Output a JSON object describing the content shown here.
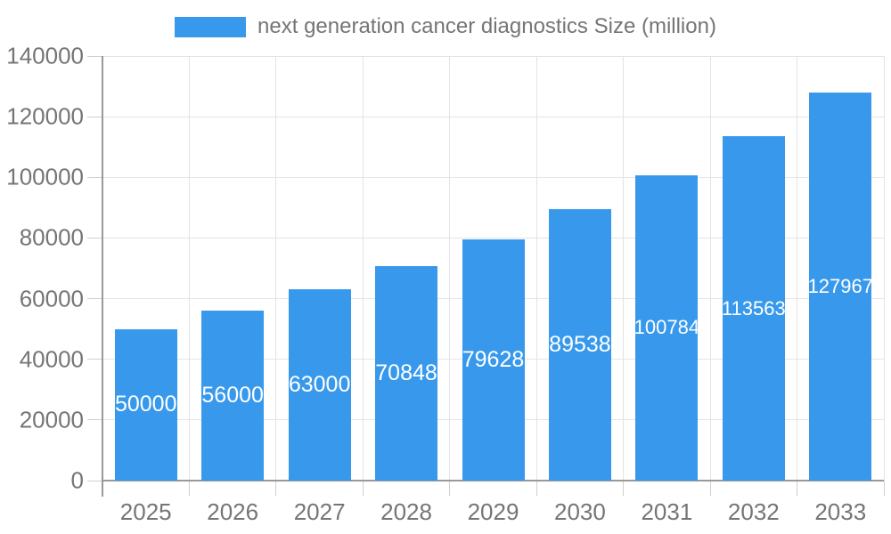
{
  "chart_data": {
    "type": "bar",
    "title": "",
    "legend": {
      "label": "next generation cancer diagnostics Size (million)",
      "position": "top"
    },
    "categories": [
      "2025",
      "2026",
      "2027",
      "2028",
      "2029",
      "2030",
      "2031",
      "2032",
      "2033"
    ],
    "series": [
      {
        "name": "next generation cancer diagnostics Size (million)",
        "values": [
          50000,
          56000,
          63000,
          70848,
          79628,
          89538,
          100784,
          113563,
          127967
        ]
      }
    ],
    "data_labels": [
      "50000",
      "56000",
      "63000",
      "70848",
      "79628",
      "89538",
      "100784",
      "113563",
      "127967"
    ],
    "yticks": [
      "0",
      "20000",
      "40000",
      "60000",
      "80000",
      "100000",
      "120000",
      "140000"
    ],
    "ylim": [
      0,
      140000
    ],
    "ytick_step": 20000,
    "grid": "on",
    "data_label_placement": "inside-center",
    "legend_position": "top-center"
  },
  "colors": {
    "bar": "#3899EC",
    "data_label": "#FFFFFF",
    "axis_label": "#757575",
    "legend_text": "#757575",
    "axis_line": "#999999",
    "gridline": "#E4E4E4",
    "tick": "#CFCFCF",
    "background": "#FFFFFF"
  }
}
